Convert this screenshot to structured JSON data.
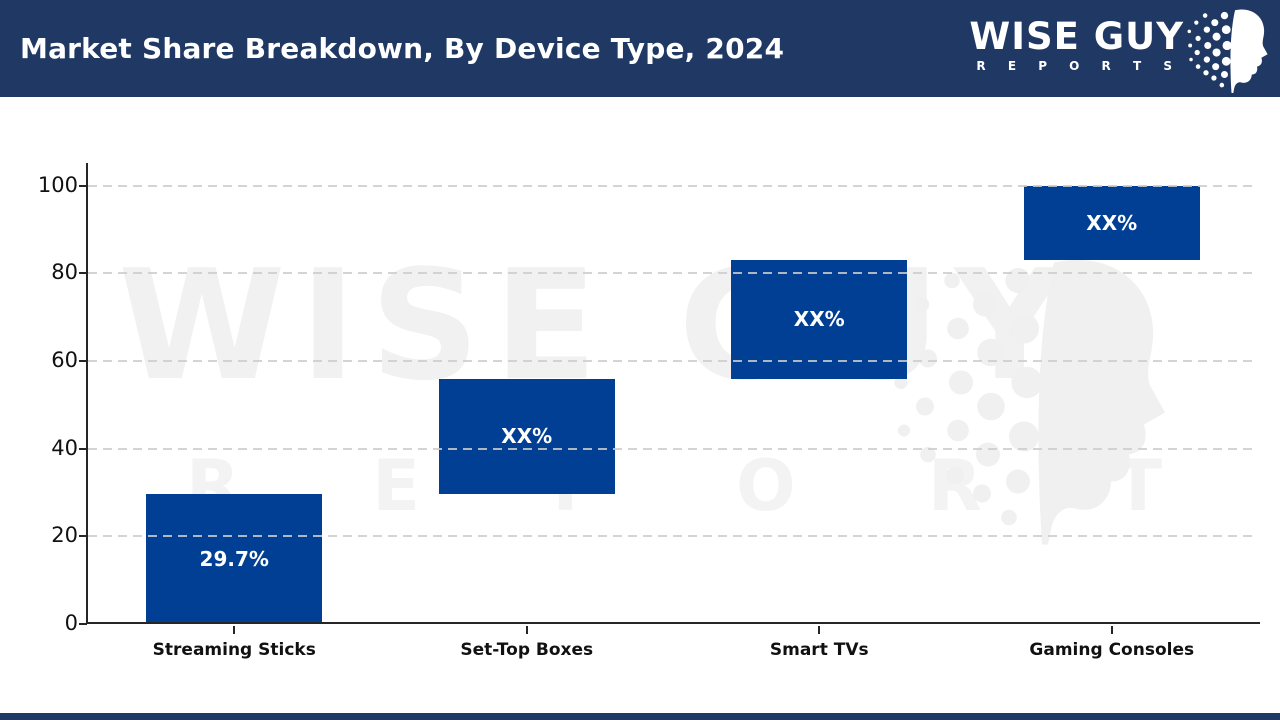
{
  "header": {
    "title": "Market Share Breakdown, By Device Type, 2024",
    "logo": {
      "line1": "WISE GUY",
      "line2": "R E P O R T S",
      "icon": "dotted-face-profile"
    }
  },
  "watermark": {
    "line1": "WISE GUY",
    "line2": "R E P O R T S",
    "icon": "dotted-face-profile"
  },
  "colors": {
    "header_bg": "#203864",
    "bar_blue": "#003F94",
    "axis": "#262626",
    "gridline": "#d8d8d8",
    "watermark_gray": "#f1f1f2",
    "label_white": "#ffffff",
    "text_black": "#111111"
  },
  "chart_data": {
    "type": "bar",
    "subtype": "waterfall",
    "title": "Market Share Breakdown, By Device Type, 2024",
    "xlabel": "",
    "ylabel": "",
    "categories": [
      "Streaming Sticks",
      "Set-Top Boxes",
      "Smart TVs",
      "Gaming Consoles"
    ],
    "segments": [
      {
        "category": "Streaming Sticks",
        "start": 0,
        "end": 29.7,
        "label": "29.7%"
      },
      {
        "category": "Set-Top Boxes",
        "start": 29.7,
        "end": 55.9,
        "label": "XX%"
      },
      {
        "category": "Smart TVs",
        "start": 55.9,
        "end": 83.1,
        "label": "XX%"
      },
      {
        "category": "Gaming Consoles",
        "start": 83.1,
        "end": 100,
        "label": "XX%"
      }
    ],
    "cumulative_totals": [
      29.7,
      55.9,
      83.1,
      100
    ],
    "ylim": [
      0,
      100
    ],
    "yticks": [
      0,
      20,
      40,
      60,
      80,
      100
    ],
    "grid": "horizontal dashed",
    "legend": "none",
    "bar_color": "#003F94"
  }
}
